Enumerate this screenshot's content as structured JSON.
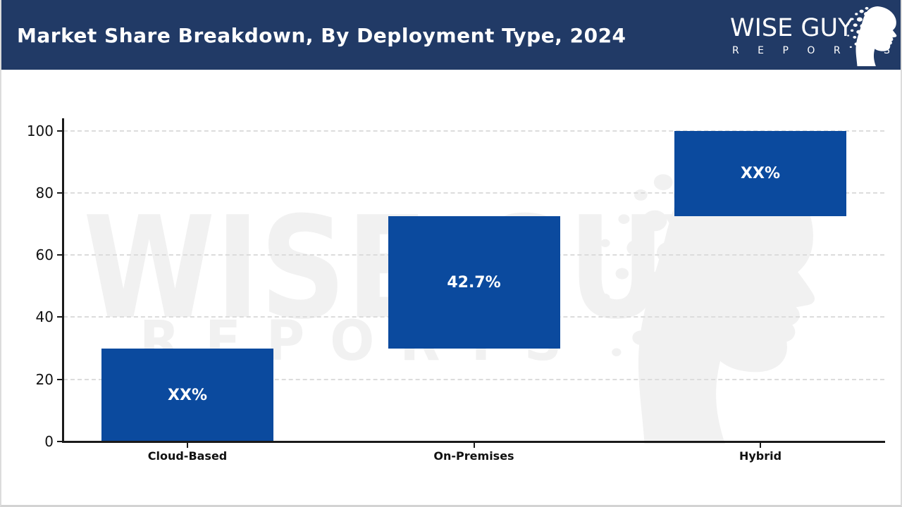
{
  "header": {
    "title": "Market Share Breakdown, By Deployment Type, 2024",
    "logo": {
      "name": "WISE GUY",
      "tagline": "R E P O R T S",
      "face_icon": "dotted-head-profile-icon"
    }
  },
  "watermark": {
    "line1": "WISE GUY",
    "line2": "REPORTS",
    "face_icon": "dotted-head-profile-icon"
  },
  "chart_data": {
    "type": "bar",
    "variant": "floating-waterfall",
    "title": "Market Share Breakdown, By Deployment Type, 2024",
    "categories": [
      "Cloud-Based",
      "On-Premises",
      "Hybrid"
    ],
    "segments": [
      {
        "category": "Cloud-Based",
        "start": 0,
        "end": 29.8,
        "label": "XX%"
      },
      {
        "category": "On-Premises",
        "start": 29.8,
        "end": 72.5,
        "label": "42.7%"
      },
      {
        "category": "Hybrid",
        "start": 72.5,
        "end": 100,
        "label": "XX%"
      }
    ],
    "xlabel": "",
    "ylabel": "",
    "yticks": [
      0,
      20,
      40,
      60,
      80,
      100
    ],
    "ylim": [
      0,
      104
    ],
    "grid": {
      "horizontal": true,
      "vertical": false,
      "style": "dashed"
    },
    "legend": "none",
    "colors": {
      "bar": "#0B4A9E",
      "bar_label": "#FFFFFF",
      "header_bg": "#213A66",
      "header_text": "#FFFFFF",
      "axis": "#1A1A1A",
      "gridline": "#DCDCDC",
      "watermark": "#F1F1F1",
      "background": "#FFFFFF"
    }
  }
}
